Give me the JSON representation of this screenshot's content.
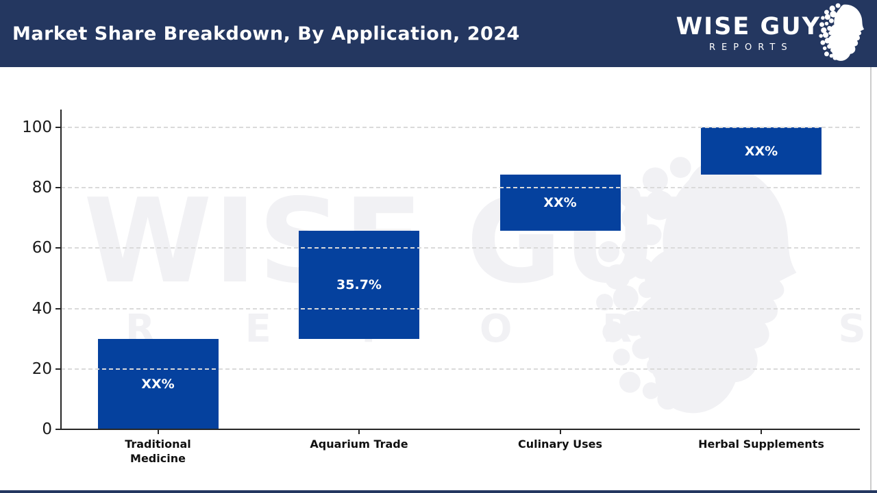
{
  "header": {
    "title": "Market Share Breakdown, By Application, 2024",
    "logo": {
      "wordmark": "WISE GUY",
      "subtext": "REPORTS"
    }
  },
  "watermark": {
    "wordmark": "WISE GUY",
    "subtext": "R E P O R T S"
  },
  "chart_data": {
    "type": "bar",
    "subtype": "floating_segment_bars_waterfall_style",
    "title": "Market Share Breakdown, By Application, 2024",
    "xlabel": "",
    "ylabel": "",
    "ylim": [
      0,
      100
    ],
    "yticks": [
      0,
      20,
      40,
      60,
      80,
      100
    ],
    "grid": "horizontal dashed",
    "legend": "none",
    "categories": [
      "Traditional Medicine",
      "Aquarium Trade",
      "Culinary Uses",
      "Herbal Supplements"
    ],
    "tick_labels": [
      "Traditional\nMedicine",
      "Aquarium Trade",
      "Culinary Uses",
      "Herbal Supplements"
    ],
    "segments": [
      {
        "category": "Traditional Medicine",
        "from": 0,
        "to": 30,
        "size": 30,
        "value_label": "XX%"
      },
      {
        "category": "Aquarium Trade",
        "from": 30,
        "to": 65.7,
        "size": 35.7,
        "value_label": "35.7%"
      },
      {
        "category": "Culinary Uses",
        "from": 65.7,
        "to": 84.3,
        "size": 18.6,
        "value_label": "XX%"
      },
      {
        "category": "Herbal Supplements",
        "from": 84.3,
        "to": 100,
        "size": 15.7,
        "value_label": "XX%"
      }
    ]
  },
  "colors": {
    "header_bg": "#243760",
    "bar": "#05419E",
    "bar_label": "#FFFFFF",
    "grid": "#DADADA",
    "axis": "#262626",
    "tick_text": "#1A1A1A",
    "watermark": "#F1F1F4",
    "border": "#CCCCCC",
    "footer": "#243760"
  }
}
